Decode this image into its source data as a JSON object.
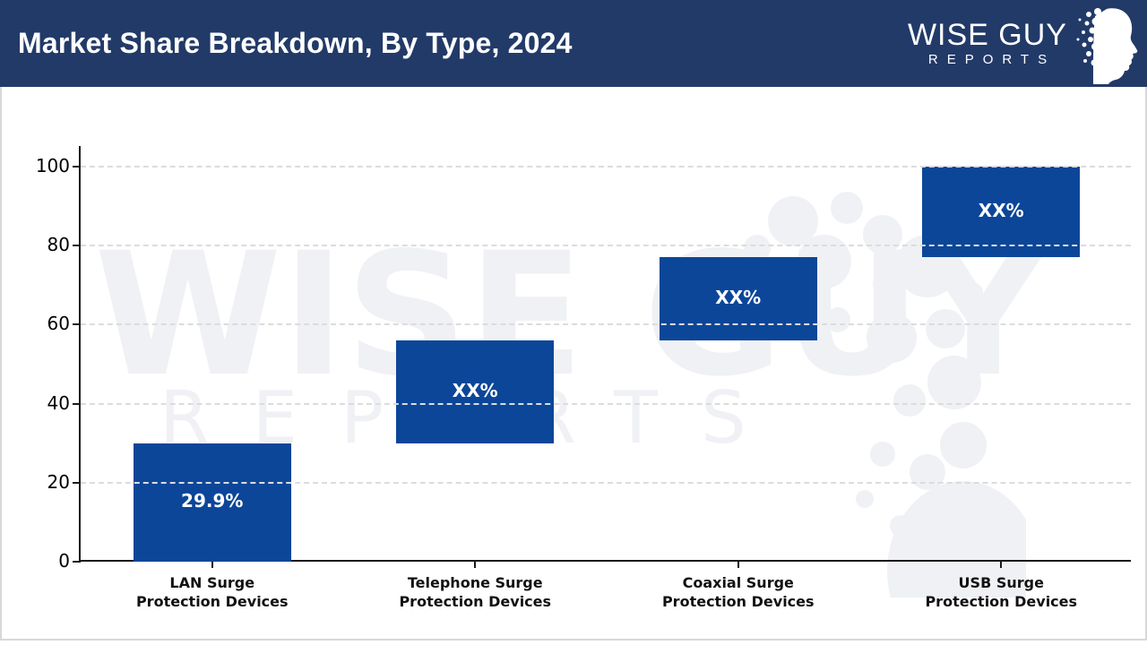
{
  "header": {
    "title": "Market Share Breakdown, By Type, 2024",
    "logo": {
      "line1": "WISE GUY",
      "line2": "REPORTS"
    }
  },
  "watermark": {
    "line1": "WISE GUY",
    "line2": "REPORTS"
  },
  "colors": {
    "header_background": "#223A68",
    "bar": "#0C4699",
    "grid": "#DCDCDC",
    "axis": "#1A1A1A",
    "watermark": "#F0F1F4",
    "value_label_text": "#FFFFFF"
  },
  "chart_data": {
    "type": "bar",
    "subtype": "floating-waterfall",
    "title": "Market Share Breakdown, By Type, 2024",
    "categories": [
      "LAN Surge Protection Devices",
      "Telephone Surge Protection Devices",
      "Coaxial Surge Protection Devices",
      "USB Surge Protection Devices"
    ],
    "bars": [
      {
        "label_line1": "LAN Surge",
        "label_line2": "Protection Devices",
        "start": 0,
        "end": 29.9,
        "value_label": "29.9%"
      },
      {
        "label_line1": "Telephone Surge",
        "label_line2": "Protection Devices",
        "start": 29.9,
        "end": 56,
        "value_label": "XX%"
      },
      {
        "label_line1": "Coaxial Surge",
        "label_line2": "Protection Devices",
        "start": 56,
        "end": 77,
        "value_label": "XX%"
      },
      {
        "label_line1": "USB Surge",
        "label_line2": "Protection Devices",
        "start": 77,
        "end": 100,
        "value_label": "XX%"
      }
    ],
    "ylim": [
      0,
      100
    ],
    "yticks": [
      0,
      20,
      40,
      60,
      80,
      100
    ],
    "grid": "horizontal-dashed",
    "legend": "none",
    "xlabel": "",
    "ylabel": ""
  }
}
